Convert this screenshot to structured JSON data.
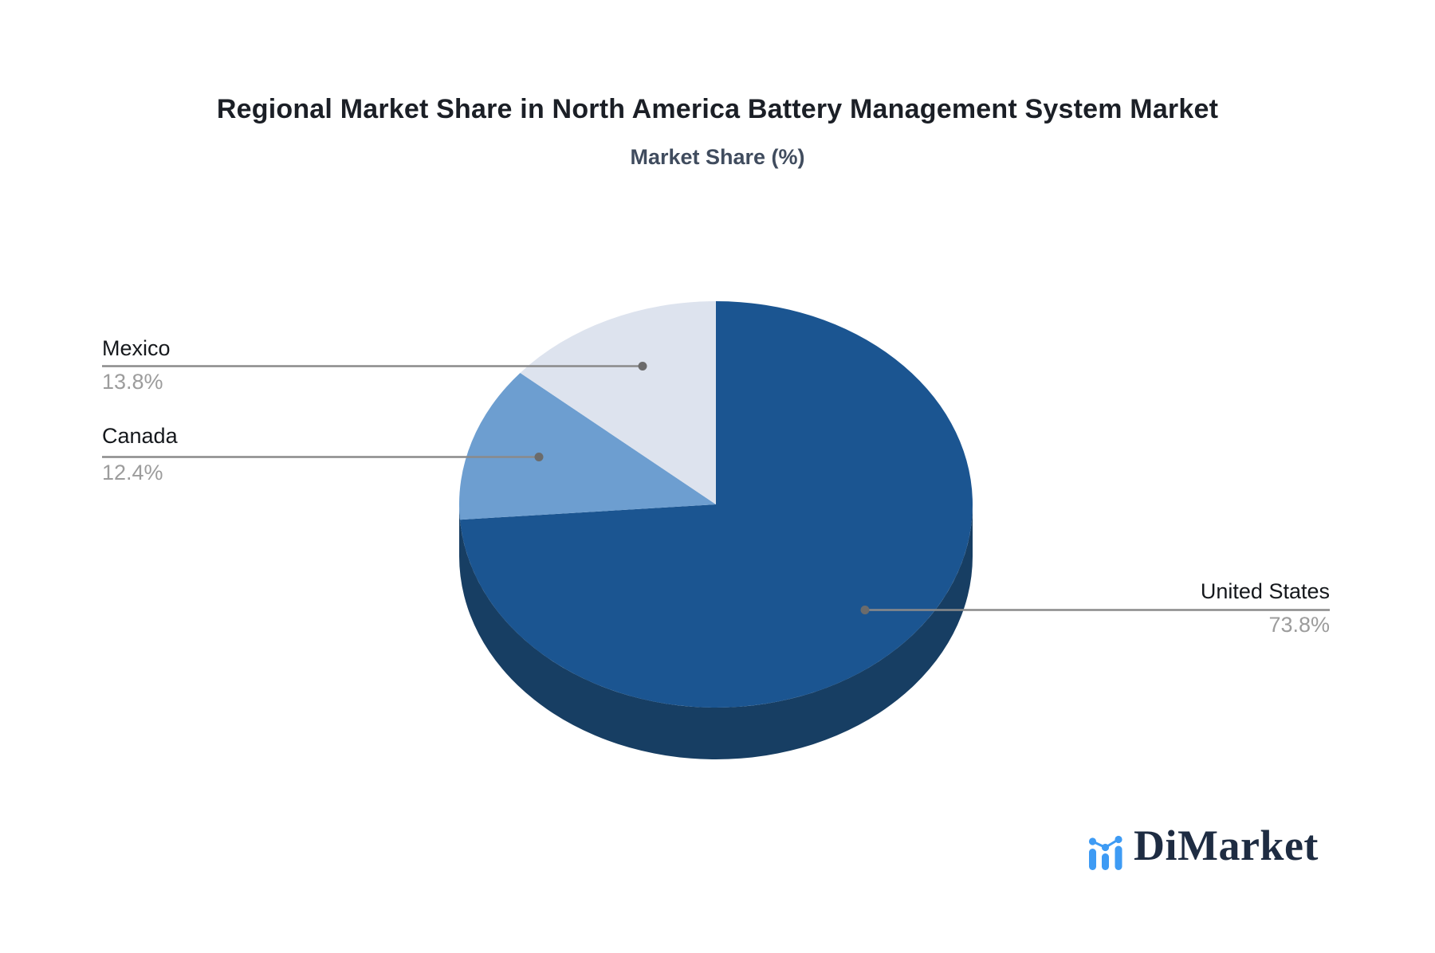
{
  "page": {
    "background": "#ffffff"
  },
  "chart_data": {
    "type": "pie",
    "style": "3d",
    "title": "Regional Market Share in North America Battery Management System Market",
    "subtitle": "Market Share (%)",
    "unit": "%",
    "start_angle_deg": 0,
    "direction": "clockwise",
    "slices": [
      {
        "label": "United States",
        "value": 73.8,
        "pct_label": "73.8%",
        "color": "#1b5591"
      },
      {
        "label": "Canada",
        "value": 12.4,
        "pct_label": "12.4%",
        "color": "#6d9ed0"
      },
      {
        "label": "Mexico",
        "value": 13.8,
        "pct_label": "13.8%",
        "color": "#dde3ee"
      }
    ],
    "side_color": "#173e63",
    "leader_line_color": "#8a8a8a",
    "leader_dot_color": "#6b6b6b",
    "label_color": "#15181c",
    "value_color": "#9c9c9c",
    "legend": "none"
  },
  "logo": {
    "text": "DiMarket",
    "icon": "bar-line-chart-icon",
    "accent_color": "#3e9bf4",
    "text_color": "#1e2c42"
  }
}
